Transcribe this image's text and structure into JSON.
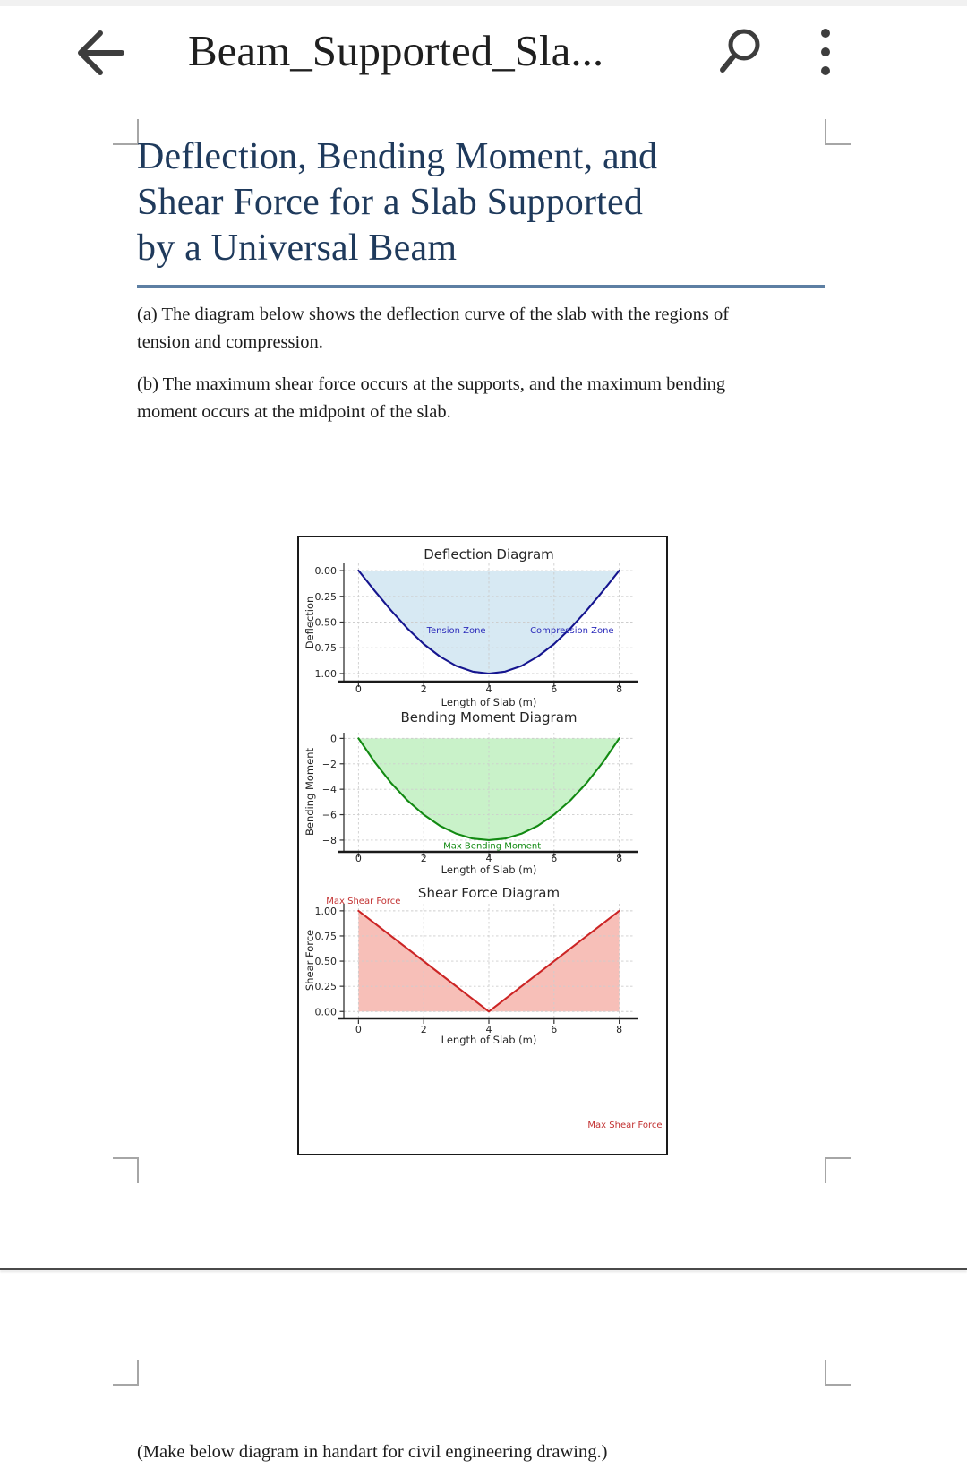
{
  "app_bar": {
    "title": "Beam_Supported_Sla...",
    "back_icon": "back-arrow",
    "search_icon": "search",
    "menu_icon": "overflow-menu"
  },
  "document": {
    "heading_lines": [
      "Deflection, Bending Moment, and",
      "Shear Force for a Slab Supported",
      "by a Universal Beam"
    ],
    "paragraphs": [
      {
        "lines": [
          "(a) The diagram below shows the deflection curve of the slab with the regions of",
          "tension and compression."
        ]
      },
      {
        "lines": [
          "(b) The maximum shear force occurs at the supports, and the maximum bending",
          "moment occurs at the midpoint of the slab."
        ]
      }
    ],
    "footer_note": "(Make below diagram in handart for civil engineering drawing.)"
  },
  "colors": {
    "appbar_title": "#1f1f1f",
    "appbar_icon": "#3d3d3d",
    "heading": "#1f3a5c",
    "heading_underline": "#5d7fa3",
    "body_text": "#1c1c1c",
    "page_mark": "#a6a6a6",
    "page_divider": "#4a4a4a",
    "figure_border": "#1a1a1a",
    "grid": "#cdcdcd",
    "axis": "#1a1a1a",
    "spine": "#333333",
    "chart_text": "#262626"
  },
  "chart_data": [
    {
      "id": "deflection",
      "type": "area",
      "title": "Deflection Diagram",
      "xlabel": "Length of Slab (m)",
      "ylabel": "Deflection",
      "xlim": [
        -0.45,
        8.45
      ],
      "ylim": [
        -1.07,
        0.07
      ],
      "grid": true,
      "x_ticks": [
        0,
        2,
        4,
        6,
        8
      ],
      "y_ticks": [
        {
          "label": "0.00",
          "value": 0
        },
        {
          "label": "−0.25",
          "value": -0.25
        },
        {
          "label": "−0.50",
          "value": -0.5
        },
        {
          "label": "−0.75",
          "value": -0.75
        },
        {
          "label": "−1.00",
          "value": -1
        }
      ],
      "series": [
        {
          "name": "deflection-curve",
          "color": "#15158f",
          "fill": "#d7e9f3",
          "x": [
            0,
            0.5,
            1,
            1.5,
            2,
            2.5,
            3,
            3.5,
            4,
            4.5,
            5,
            5.5,
            6,
            6.5,
            7,
            7.5,
            8
          ],
          "y": [
            0,
            -0.198,
            -0.388,
            -0.562,
            -0.713,
            -0.835,
            -0.926,
            -0.981,
            -1,
            -0.981,
            -0.926,
            -0.835,
            -0.713,
            -0.562,
            -0.388,
            -0.198,
            0
          ]
        }
      ],
      "annotations": [
        {
          "text": "Tension Zone",
          "x": 3.0,
          "y": -0.58,
          "color": "#2d2dbb"
        },
        {
          "text": "Compression Zone",
          "x": 6.55,
          "y": -0.58,
          "color": "#2d2dbb"
        }
      ]
    },
    {
      "id": "bending-moment",
      "type": "area",
      "title": "Bending Moment Diagram",
      "xlabel": "Length of Slab (m)",
      "ylabel": "Bending Moment",
      "xlim": [
        -0.45,
        8.45
      ],
      "ylim": [
        -8.85,
        0.45
      ],
      "grid": true,
      "x_ticks": [
        0,
        2,
        4,
        6,
        8
      ],
      "y_ticks": [
        {
          "label": "0",
          "value": 0
        },
        {
          "label": "−2",
          "value": -2
        },
        {
          "label": "−4",
          "value": -4
        },
        {
          "label": "−6",
          "value": -6
        },
        {
          "label": "−8",
          "value": -8
        }
      ],
      "series": [
        {
          "name": "bending-moment-curve",
          "color": "#128a12",
          "fill": "#c9f2c9",
          "x": [
            0,
            0.5,
            1,
            1.5,
            2,
            2.5,
            3,
            3.5,
            4,
            4.5,
            5,
            5.5,
            6,
            6.5,
            7,
            7.5,
            8
          ],
          "y": [
            0,
            -1.875,
            -3.5,
            -4.875,
            -6,
            -6.875,
            -7.5,
            -7.875,
            -8,
            -7.875,
            -7.5,
            -6.875,
            -6,
            -4.875,
            -3.5,
            -1.875,
            0
          ]
        }
      ],
      "annotations": [
        {
          "text": "Max Bending Moment",
          "x": 4.1,
          "y": -8.42,
          "color": "#128a12"
        }
      ]
    },
    {
      "id": "shear-force",
      "type": "area",
      "title": "Shear Force Diagram",
      "xlabel": "Length of Slab (m)",
      "ylabel": "Shear Force",
      "xlim": [
        -0.45,
        8.45
      ],
      "ylim": [
        -0.06,
        1.07
      ],
      "grid": true,
      "x_ticks": [
        0,
        2,
        4,
        6,
        8
      ],
      "y_ticks": [
        {
          "label": "1.00",
          "value": 1
        },
        {
          "label": "0.75",
          "value": 0.75
        },
        {
          "label": "0.50",
          "value": 0.5
        },
        {
          "label": "0.25",
          "value": 0.25
        },
        {
          "label": "0.00",
          "value": 0
        }
      ],
      "series": [
        {
          "name": "shear-force-curve",
          "color": "#cc2525",
          "fill": "#f7bfb8",
          "x": [
            0,
            4,
            8
          ],
          "y": [
            1,
            0,
            1
          ]
        }
      ],
      "annotations": [
        {
          "text": "Max Shear Force",
          "x": 0.15,
          "y": 1.1,
          "color": "#c23030"
        }
      ],
      "corner_note": {
        "text": "Max Shear Force",
        "color": "#c23030"
      }
    }
  ]
}
